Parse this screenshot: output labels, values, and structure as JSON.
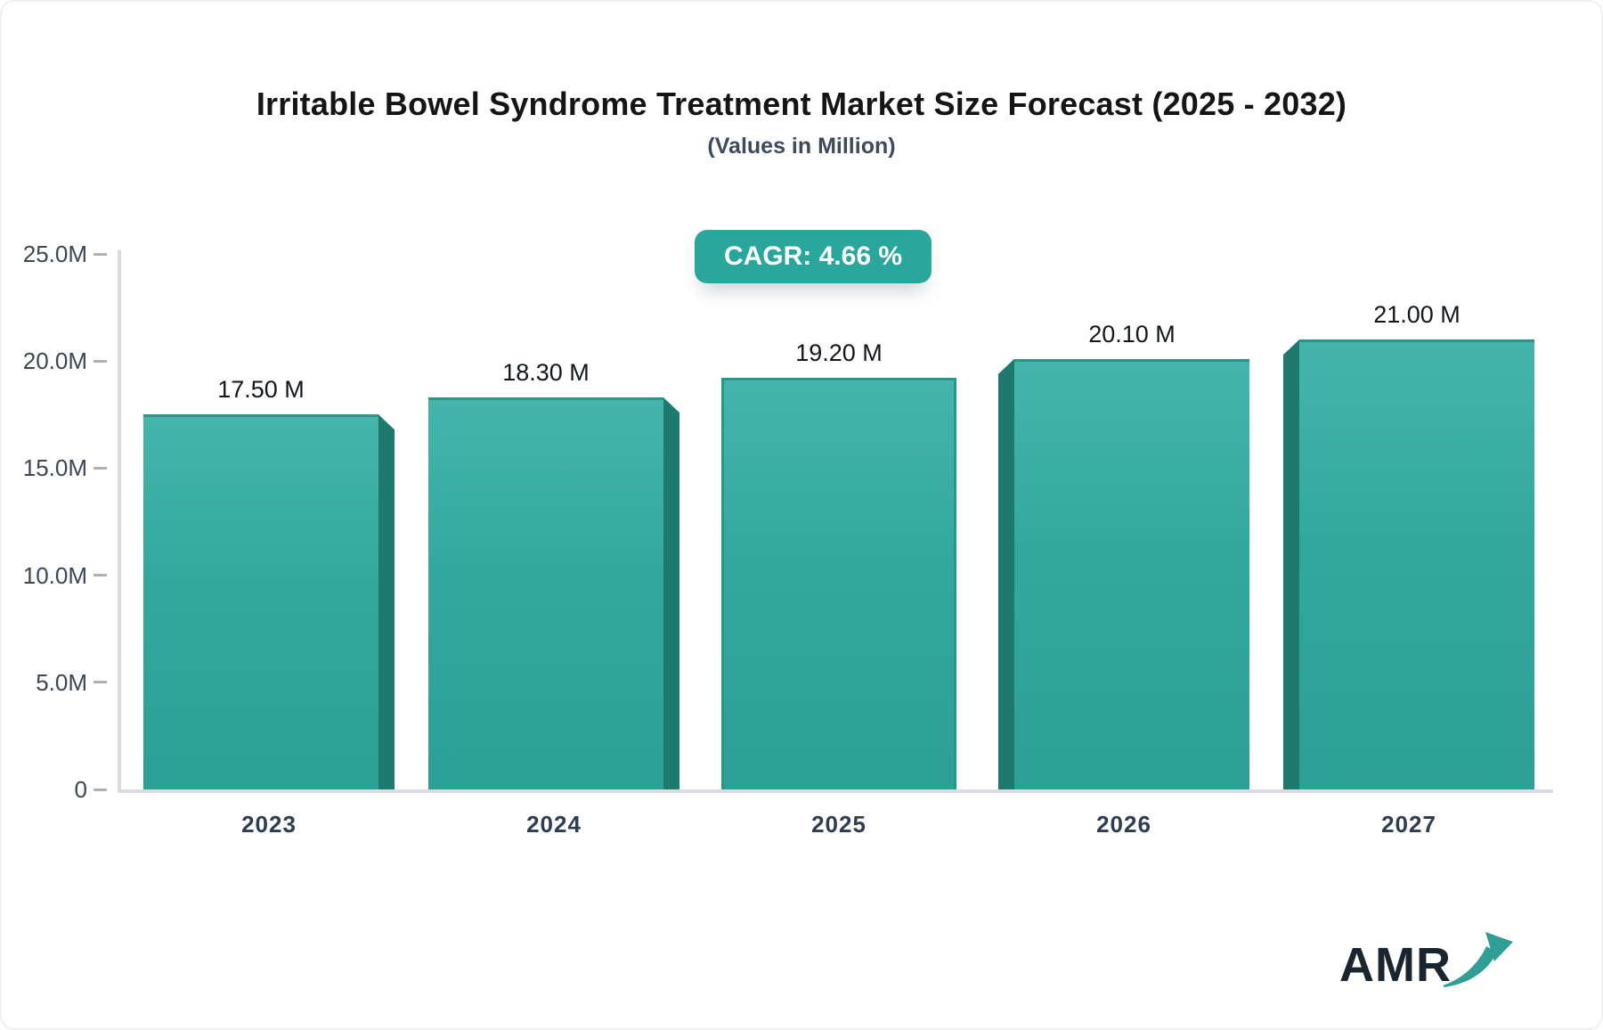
{
  "header": {
    "title": "Irritable Bowel Syndrome Treatment Market Size Forecast (2025 - 2032)",
    "subtitle": "(Values in Million)"
  },
  "badge": {
    "label": "CAGR: 4.66 %"
  },
  "chart_data": {
    "type": "bar",
    "title": "Irritable Bowel Syndrome Treatment Market Size Forecast (2025 - 2032)",
    "subtitle": "(Values in Million)",
    "annotation": "CAGR: 4.66 %",
    "categories": [
      "2023",
      "2024",
      "2025",
      "2026",
      "2027"
    ],
    "series": [
      {
        "name": "Market Size (Million)",
        "values": [
          17.5,
          18.3,
          19.2,
          20.1,
          21.0
        ]
      }
    ],
    "value_labels": [
      "17.50 M",
      "18.30 M",
      "19.20 M",
      "20.10 M",
      "21.00 M"
    ],
    "y_ticks": [
      {
        "label": "25.0M",
        "value": 25
      },
      {
        "label": "20.0M",
        "value": 20
      },
      {
        "label": "15.0M",
        "value": 15
      },
      {
        "label": "10.0M",
        "value": 10
      },
      {
        "label": "5.0M",
        "value": 5
      },
      {
        "label": "0",
        "value": 0
      }
    ],
    "ylim": [
      0,
      25
    ],
    "grid": false,
    "legend": false,
    "bar_style": "3d-bevel"
  },
  "colors": {
    "accent": "#2aa79c",
    "bar_fill": "#35aba0",
    "bar_shadow": "#1e796e",
    "axis_line": "#d9dce1",
    "logo_navy": "#1a2530",
    "logo_teal": "#2f9e94"
  },
  "logo": {
    "text": "AMR",
    "icon": "trend-up-arrow"
  }
}
